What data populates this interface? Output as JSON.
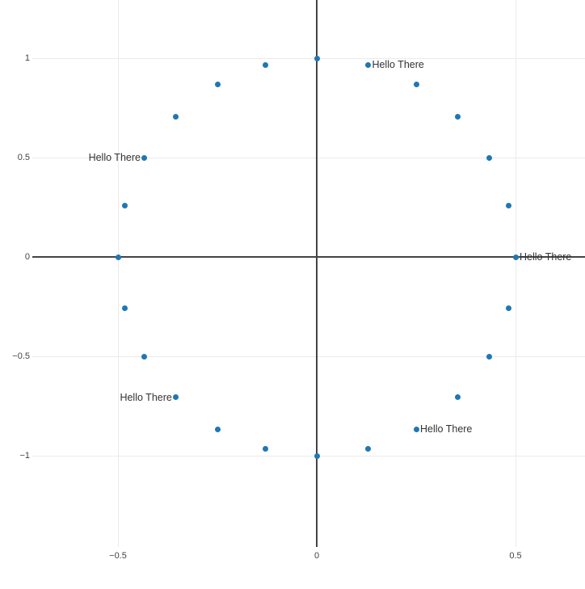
{
  "figure": {
    "background_color": "#ffffff",
    "grid_color": "#ebebeb",
    "zero_line_color": "#444444",
    "tick_label_color": "#444444",
    "point_label_color": "#333333",
    "marker_color": "#1f77b4"
  },
  "chart_data": {
    "type": "scatter",
    "title": "",
    "xlabel": "",
    "ylabel": "",
    "grid": true,
    "zero_lines": true,
    "annotation_text": "Hello There",
    "x_ticks": [
      {
        "value": -0.5,
        "label": "−0.5"
      },
      {
        "value": 0,
        "label": "0"
      },
      {
        "value": 0.5,
        "label": "0.5"
      }
    ],
    "y_ticks": [
      {
        "value": 1,
        "label": "1"
      },
      {
        "value": 0.5,
        "label": "0.5"
      },
      {
        "value": 0,
        "label": "0"
      },
      {
        "value": -0.5,
        "label": "−0.5"
      },
      {
        "value": -1,
        "label": "−1"
      }
    ],
    "x_axis_visible_range": [
      -0.72,
      0.68
    ],
    "y_axis_visible_range": [
      -1.46,
      1.29
    ],
    "points": [
      {
        "x": 0.5,
        "y": 0,
        "label": "Hello There",
        "label_side": "right"
      },
      {
        "x": 0.483,
        "y": 0.259
      },
      {
        "x": 0.433,
        "y": 0.5
      },
      {
        "x": 0.354,
        "y": 0.707
      },
      {
        "x": 0.25,
        "y": 0.866
      },
      {
        "x": 0.129,
        "y": 0.966,
        "label": "Hello There",
        "label_side": "right"
      },
      {
        "x": 0,
        "y": 1
      },
      {
        "x": -0.129,
        "y": 0.966
      },
      {
        "x": -0.25,
        "y": 0.866
      },
      {
        "x": -0.354,
        "y": 0.707
      },
      {
        "x": -0.433,
        "y": 0.5,
        "label": "Hello There",
        "label_side": "left"
      },
      {
        "x": -0.483,
        "y": 0.259
      },
      {
        "x": -0.5,
        "y": 0
      },
      {
        "x": -0.483,
        "y": -0.259
      },
      {
        "x": -0.433,
        "y": -0.5
      },
      {
        "x": -0.354,
        "y": -0.707,
        "label": "Hello There",
        "label_side": "left"
      },
      {
        "x": -0.25,
        "y": -0.866
      },
      {
        "x": -0.129,
        "y": -0.966
      },
      {
        "x": 0,
        "y": -1
      },
      {
        "x": 0.129,
        "y": -0.966
      },
      {
        "x": 0.25,
        "y": -0.866,
        "label": "Hello There",
        "label_side": "right"
      },
      {
        "x": 0.354,
        "y": -0.707
      },
      {
        "x": 0.433,
        "y": -0.5
      },
      {
        "x": 0.483,
        "y": -0.259
      }
    ]
  }
}
